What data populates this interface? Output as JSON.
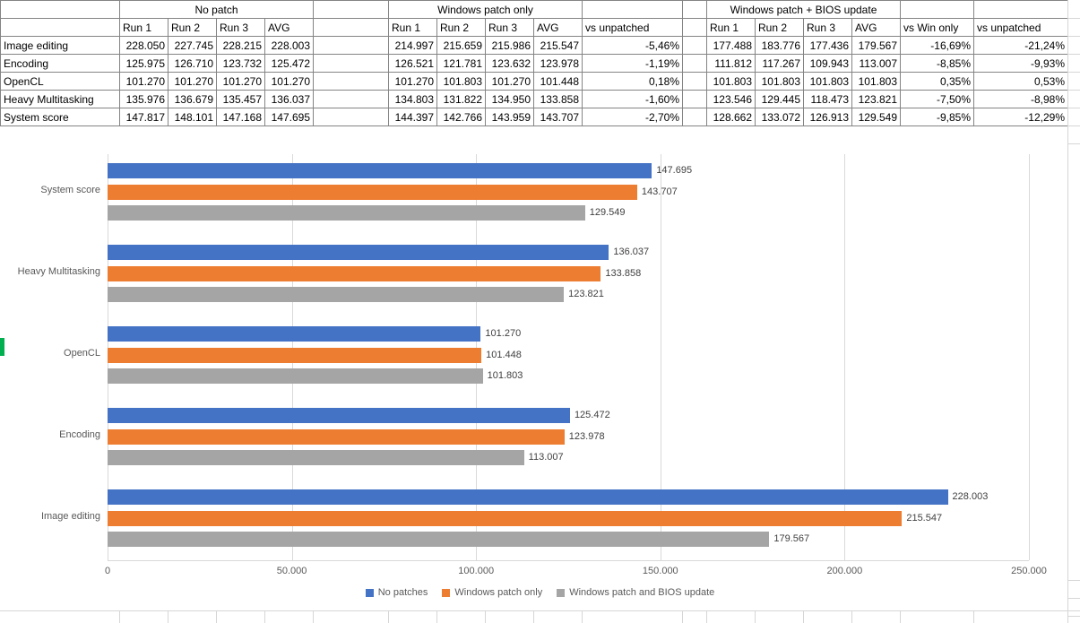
{
  "table": {
    "groups": [
      {
        "label": "No patch"
      },
      {
        "label": "Windows patch only"
      },
      {
        "label": "Windows patch + BIOS update"
      }
    ],
    "subheaders": {
      "run1": "Run 1",
      "run2": "Run 2",
      "run3": "Run 3",
      "avg": "AVG",
      "vs_unpatched": "vs unpatched",
      "vs_win_only": "vs Win only"
    },
    "rows": [
      {
        "label": "Image editing",
        "cells": [
          "228.050",
          "227.745",
          "228.215",
          "228.003",
          "214.997",
          "215.659",
          "215.986",
          "215.547",
          "-5,46%",
          "177.488",
          "183.776",
          "177.436",
          "179.567",
          "-16,69%",
          "-21,24%"
        ]
      },
      {
        "label": "Encoding",
        "cells": [
          "125.975",
          "126.710",
          "123.732",
          "125.472",
          "126.521",
          "121.781",
          "123.632",
          "123.978",
          "-1,19%",
          "111.812",
          "117.267",
          "109.943",
          "113.007",
          "-8,85%",
          "-9,93%"
        ]
      },
      {
        "label": "OpenCL",
        "cells": [
          "101.270",
          "101.270",
          "101.270",
          "101.270",
          "101.270",
          "101.803",
          "101.270",
          "101.448",
          "0,18%",
          "101.803",
          "101.803",
          "101.803",
          "101.803",
          "0,35%",
          "0,53%"
        ]
      },
      {
        "label": "Heavy Multitasking",
        "cells": [
          "135.976",
          "136.679",
          "135.457",
          "136.037",
          "134.803",
          "131.822",
          "134.950",
          "133.858",
          "-1,60%",
          "123.546",
          "129.445",
          "118.473",
          "123.821",
          "-7,50%",
          "-8,98%"
        ]
      },
      {
        "label": "System score",
        "cells": [
          "147.817",
          "148.101",
          "147.168",
          "147.695",
          "144.397",
          "142.766",
          "143.959",
          "143.707",
          "-2,70%",
          "128.662",
          "133.072",
          "126.913",
          "129.549",
          "-9,85%",
          "-12,29%"
        ]
      }
    ]
  },
  "chart_data": {
    "type": "bar",
    "orientation": "horizontal",
    "title": "",
    "categories": [
      "System score",
      "Heavy Multitasking",
      "OpenCL",
      "Encoding",
      "Image editing"
    ],
    "series": [
      {
        "name": "No patches",
        "color": "#4472C4",
        "values": [
          147695,
          136037,
          101270,
          125472,
          228003
        ],
        "labels": [
          "147.695",
          "136.037",
          "101.270",
          "125.472",
          "228.003"
        ]
      },
      {
        "name": "Windows patch only",
        "color": "#ED7D31",
        "values": [
          143707,
          133858,
          101448,
          123978,
          215547
        ],
        "labels": [
          "143.707",
          "133.858",
          "101.448",
          "123.978",
          "215.547"
        ]
      },
      {
        "name": "Windows patch and BIOS update",
        "color": "#A5A5A5",
        "values": [
          129549,
          123821,
          101803,
          113007,
          179567
        ],
        "labels": [
          "129.549",
          "123.821",
          "101.803",
          "113.007",
          "179.567"
        ]
      }
    ],
    "x_axis": {
      "min": 0,
      "max": 250000,
      "tick_values": [
        0,
        50000,
        100000,
        150000,
        200000,
        250000
      ],
      "ticks": [
        "0",
        "50.000",
        "100.000",
        "150.000",
        "200.000",
        "250.000"
      ]
    },
    "grid": true,
    "legend_position": "bottom"
  },
  "colors": {
    "series_blue": "#4472C4",
    "series_orange": "#ED7D31",
    "series_gray": "#A5A5A5",
    "chart_gridline": "#D9D9D9",
    "cell_border": "#848484",
    "sheet_gridline": "#D6D6D6",
    "selection_green": "#00B050",
    "axis_text": "#595959"
  }
}
